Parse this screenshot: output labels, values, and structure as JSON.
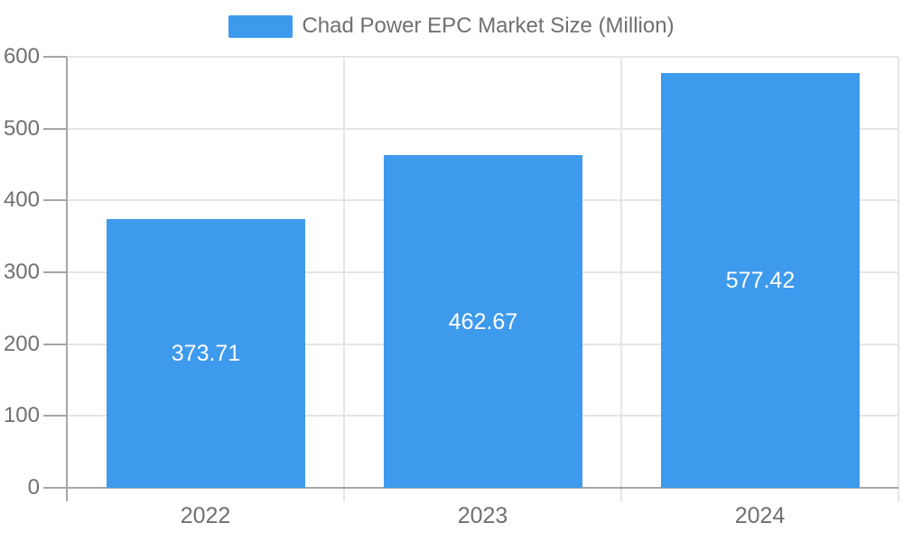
{
  "legend": {
    "label": "Chad Power EPC Market Size (Million)"
  },
  "colors": {
    "bar": "#3E9AED",
    "axis_line": "#A6A6A6",
    "grid_line": "#E5E5E5",
    "axis_label_text": "#707070",
    "bar_label_text": "#FFFFFF",
    "background": "#FFFFFF"
  },
  "chart_data": {
    "type": "bar",
    "title": "",
    "categories": [
      "2022",
      "2023",
      "2024"
    ],
    "series": [
      {
        "name": "Chad Power EPC Market Size (Million)",
        "values": [
          373.71,
          462.67,
          577.42
        ],
        "labels": [
          "373.71",
          "462.67",
          "577.42"
        ],
        "color": "#3E9AED"
      }
    ],
    "xlabel": "",
    "ylabel": "",
    "ylim": [
      0,
      600
    ],
    "yticks": [
      0,
      100,
      200,
      300,
      400,
      500,
      600
    ],
    "grid": true,
    "legend_position": "top-center",
    "bar_label_position": "inside-center"
  }
}
